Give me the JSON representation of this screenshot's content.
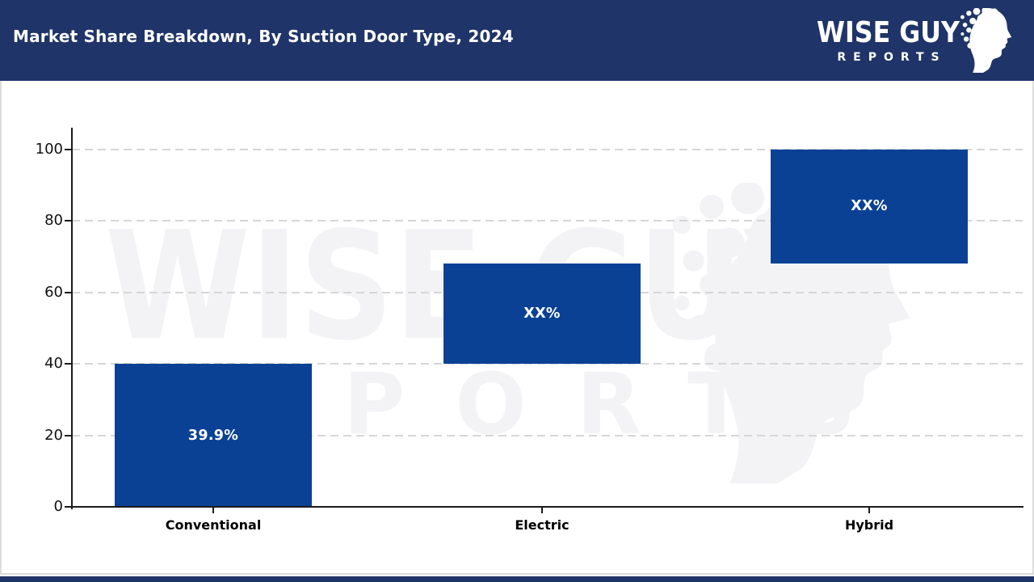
{
  "header": {
    "title": "Market Share Breakdown, By Suction Door Type, 2024",
    "logo": {
      "name": "WISE GUY",
      "sub": "REPORTS"
    }
  },
  "watermark": {
    "name": "WISE GUY",
    "sub": "REPORTS"
  },
  "colors": {
    "header_bg": "#1f3468",
    "bar": "#0a4195",
    "grid": "#d6d6d6",
    "axis": "#1a1a1a",
    "bar_label": "#ffffff",
    "watermark": "#f3f3f5"
  },
  "chart_data": {
    "type": "bar",
    "variant": "floating-waterfall",
    "title": "Market Share Breakdown, By Suction Door Type, 2024",
    "categories": [
      "Conventional",
      "Electric",
      "Hybrid"
    ],
    "series": [
      {
        "name": "Market share (%)",
        "segments": [
          {
            "category": "Conventional",
            "from": 0,
            "to": 39.9,
            "label": "39.9%"
          },
          {
            "category": "Electric",
            "from": 39.9,
            "to": 68,
            "label": "XX%"
          },
          {
            "category": "Hybrid",
            "from": 68,
            "to": 100,
            "label": "XX%"
          }
        ]
      }
    ],
    "xlabel": "",
    "ylabel": "",
    "ylim": [
      0,
      100
    ],
    "yticks": [
      0,
      20,
      40,
      60,
      80,
      100
    ],
    "grid": "horizontal-dashed",
    "legend": "none"
  }
}
